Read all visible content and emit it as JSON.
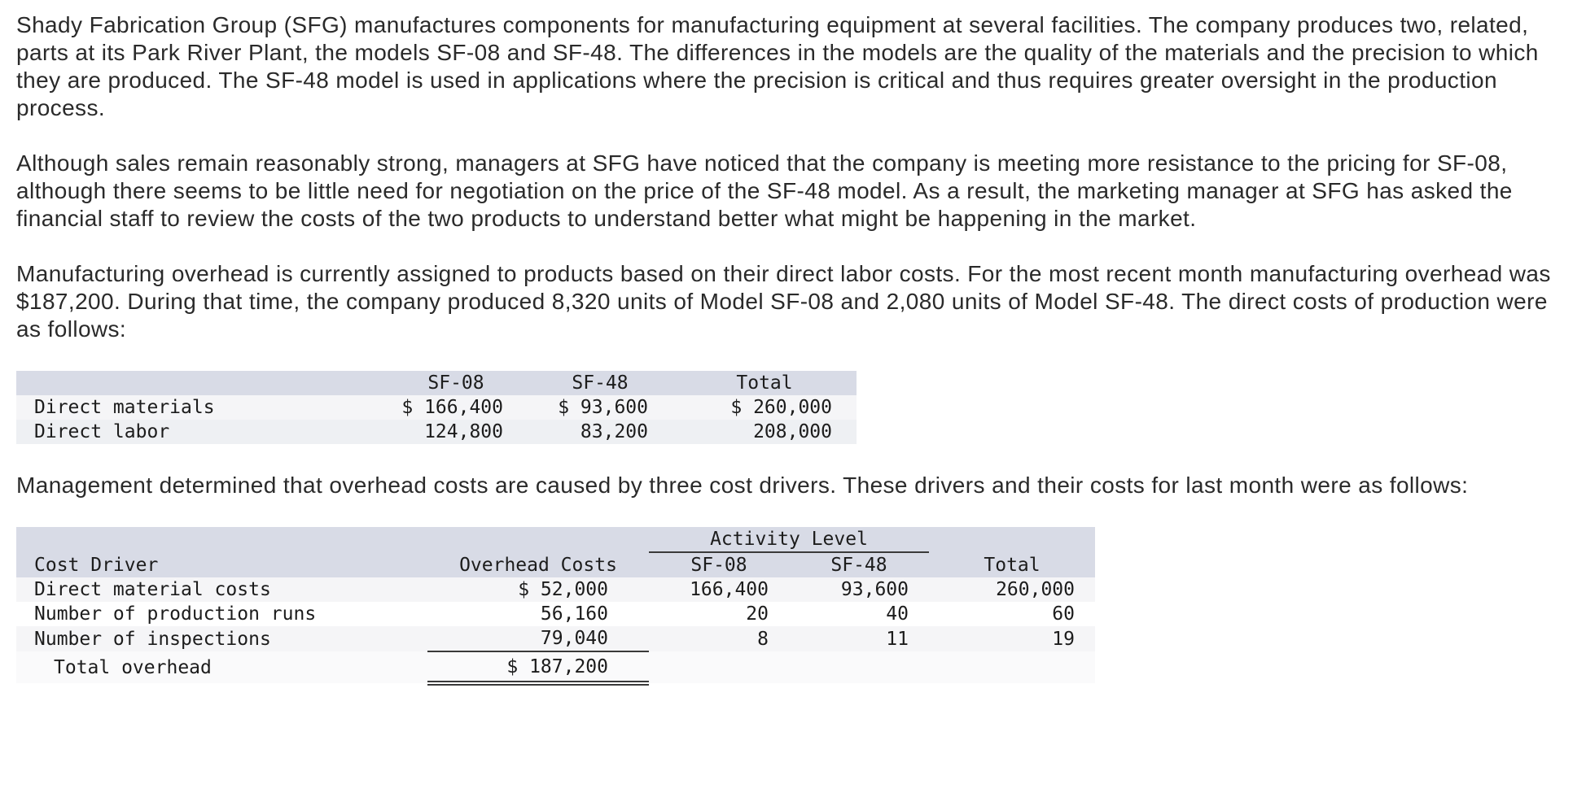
{
  "page": {
    "background": "#ffffff",
    "text_color": "#2a2a2a",
    "table_header_bg": "#d8dbe6",
    "table_row_alt_bg": "#f5f5f7"
  },
  "paragraphs": [
    "Shady Fabrication Group (SFG) manufactures components for manufacturing equipment at several facilities. The company produces two, related, parts at its Park River Plant, the models SF-08 and SF-48. The differences in the models are the quality of the materials and the precision to which they are produced. The SF-48 model is used in applications where the precision is critical and thus requires greater oversight in the production process.",
    "Although sales remain reasonably strong, managers at SFG have noticed that the company is meeting more resistance to the pricing for SF-08, although there seems to be little need for negotiation on the price of the SF-48 model. As a result, the marketing manager at SFG has asked the financial staff to review the costs of the two products to understand better what might be happening in the market.",
    "Manufacturing overhead is currently assigned to products based on their direct labor costs. For the most recent month manufacturing overhead was $187,200. During that time, the company produced 8,320 units of Model SF-08 and 2,080 units of Model SF-48. The direct costs of production were as follows:",
    "Management determined that overhead costs are caused by three cost drivers. These drivers and their costs for last month were as follows:"
  ],
  "direct_costs_table": {
    "col_headers": {
      "sf08": "SF-08",
      "sf48": "SF-48",
      "total": "Total"
    },
    "rows": [
      {
        "label": "Direct materials",
        "sf08": "$ 166,400",
        "sf48": "$ 93,600",
        "total": "$ 260,000"
      },
      {
        "label": "Direct labor",
        "sf08": "124,800",
        "sf48": "83,200",
        "total": "208,000"
      }
    ]
  },
  "cost_driver_table": {
    "activity_level_label": "Activity Level",
    "col_headers": {
      "cost_driver": "Cost Driver",
      "overhead": "Overhead Costs",
      "sf08": "SF-08",
      "sf48": "SF-48",
      "total": "Total"
    },
    "rows": [
      {
        "label": "Direct material costs",
        "overhead": "$ 52,000",
        "sf08": "166,400",
        "sf48": "93,600",
        "total": "260,000"
      },
      {
        "label": "Number of production runs",
        "overhead": "56,160",
        "sf08": "20",
        "sf48": "40",
        "total": "60"
      },
      {
        "label": "Number of inspections",
        "overhead": "79,040",
        "sf08": "8",
        "sf48": "11",
        "total": "19"
      }
    ],
    "total_row": {
      "label": "Total overhead",
      "overhead": "$ 187,200"
    }
  }
}
